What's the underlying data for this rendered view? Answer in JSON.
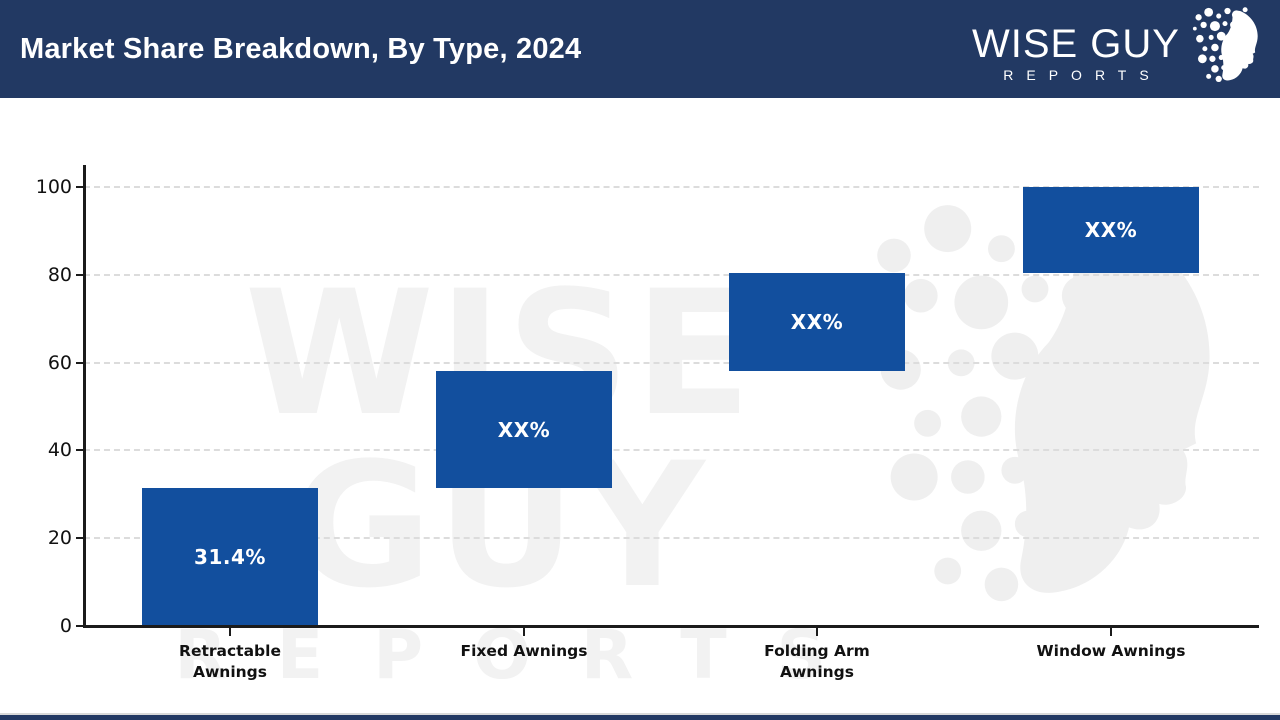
{
  "header": {
    "title": "Market Share Breakdown, By Type, 2024",
    "logo": {
      "name": "WISE GUY",
      "subname": "REPORTS"
    }
  },
  "watermark": {
    "name": "WISE GUY",
    "subname": "REPORTS"
  },
  "chart_data": {
    "type": "waterfall",
    "title": "Market Share Breakdown, By Type, 2024",
    "categories": [
      "Retractable Awnings",
      "Fixed Awnings",
      "Folding Arm Awnings",
      "Window Awnings"
    ],
    "segments": [
      {
        "category_lines": [
          "Retractable",
          "Awnings"
        ],
        "start": 0,
        "end": 31.4,
        "value_label": "31.4%"
      },
      {
        "category_lines": [
          "Fixed Awnings"
        ],
        "start": 31.4,
        "end": 58,
        "value_label": "XX%"
      },
      {
        "category_lines": [
          "Folding Arm",
          "Awnings"
        ],
        "start": 58,
        "end": 80.5,
        "value_label": "XX%"
      },
      {
        "category_lines": [
          "Window Awnings"
        ],
        "start": 80.5,
        "end": 100,
        "value_label": "XX%"
      }
    ],
    "y_ticks": [
      0,
      20,
      40,
      60,
      80,
      100
    ],
    "ylim": [
      0,
      105
    ],
    "xlabel": "",
    "ylabel": "",
    "legend": "none",
    "grid": "horizontal-dashed",
    "bar_color": "#124F9E"
  },
  "colors": {
    "header_bg": "#223963",
    "bar": "#124F9E",
    "axis": "#1b1b1b",
    "grid": "#dcdcdc",
    "watermark": "#f2f2f2",
    "bar_label": "#ffffff"
  }
}
